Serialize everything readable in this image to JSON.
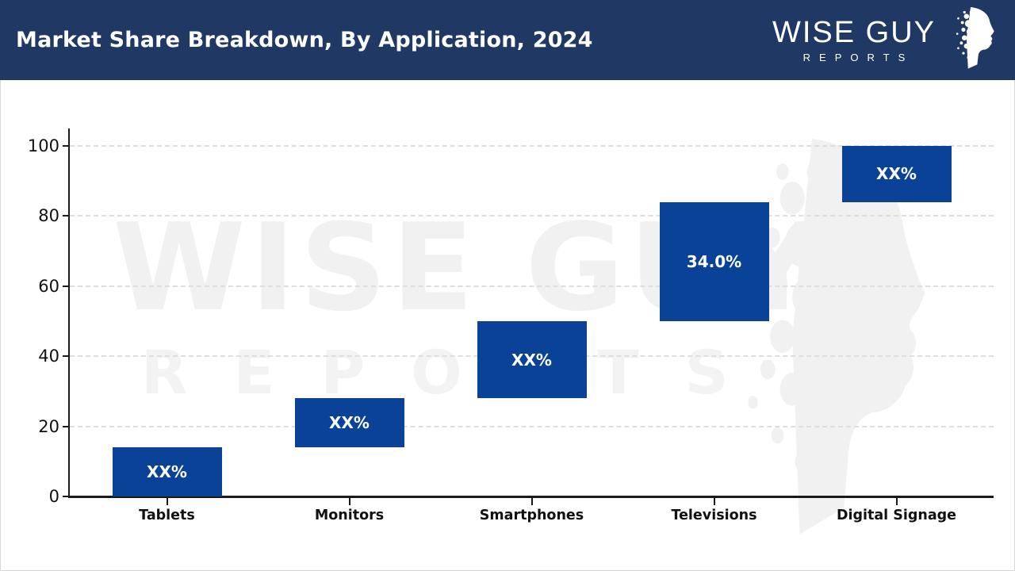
{
  "header": {
    "title": "Market Share Breakdown, By Application, 2024",
    "logo_line1": "WISE GUY",
    "logo_line2": "REPORTS"
  },
  "watermark": {
    "line1": "WISE GUY",
    "line2": "REPORTS"
  },
  "chart_data": {
    "type": "bar",
    "subtype": "floating-segment-market-share",
    "title": "Market Share Breakdown, By Application, 2024",
    "categories": [
      "Tablets",
      "Monitors",
      "Smartphones",
      "Televisions",
      "Digital Signage"
    ],
    "bars": [
      {
        "category": "Tablets",
        "start": 0,
        "end": 14,
        "value_label": "XX%"
      },
      {
        "category": "Monitors",
        "start": 14,
        "end": 28,
        "value_label": "XX%"
      },
      {
        "category": "Smartphones",
        "start": 28,
        "end": 50,
        "value_label": "XX%"
      },
      {
        "category": "Televisions",
        "start": 50,
        "end": 84,
        "value_label": "34.0%"
      },
      {
        "category": "Digital Signage",
        "start": 84,
        "end": 100,
        "value_label": "XX%"
      }
    ],
    "y_ticks": [
      0,
      20,
      40,
      60,
      80,
      100
    ],
    "ylim": [
      0,
      105
    ],
    "xlabel": "",
    "ylabel": "",
    "grid": "horizontal-dashed",
    "legend": "none",
    "colors": {
      "bar": "#0a4298",
      "grid": "#dedede",
      "axis": "#1a1a1a",
      "bar_label_text": "#ffffff",
      "header_bg": "#1f3864",
      "watermark": "#f1f1f2"
    }
  }
}
